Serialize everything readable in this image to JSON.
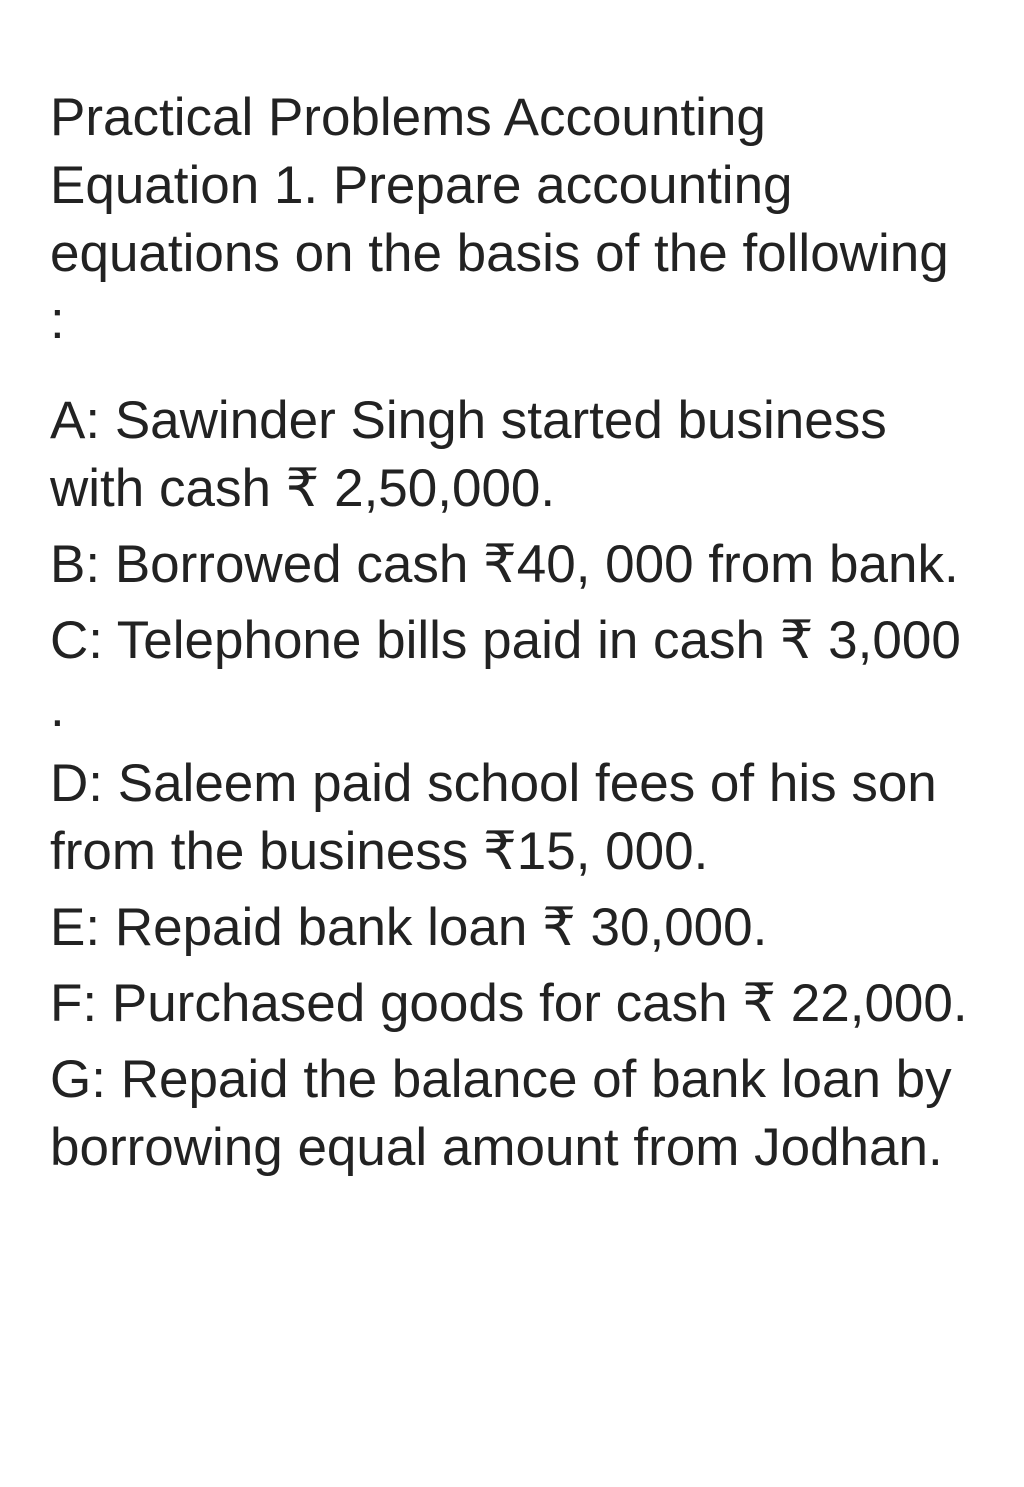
{
  "heading": "Practical Problems Accounting Equation 1. Prepare accounting equations on the basis of the following :",
  "items": [
    {
      "label": "A:",
      "text": "Sawinder Singh started business with cash ₹ 2,50,000."
    },
    {
      "label": "B:",
      "text": "Borrowed cash ₹40, 000 from bank."
    },
    {
      "label": "C:",
      "text": "Telephone bills paid in cash ₹ 3,000 ."
    },
    {
      "label": "D:",
      "text": "Saleem paid school fees of his son from the business ₹15, 000."
    },
    {
      "label": "E:",
      "text": "Repaid bank loan ₹ 30,000."
    },
    {
      "label": "F:",
      "text": "Purchased goods for cash ₹ 22,000."
    },
    {
      "label": "G:",
      "text": "Repaid the balance of bank loan by borrowing equal amount from Jodhan."
    }
  ],
  "style": {
    "font_size_pt": 40,
    "line_height": 1.28,
    "text_color": "#222222",
    "background_color": "#ffffff",
    "font_family": "Arial"
  }
}
